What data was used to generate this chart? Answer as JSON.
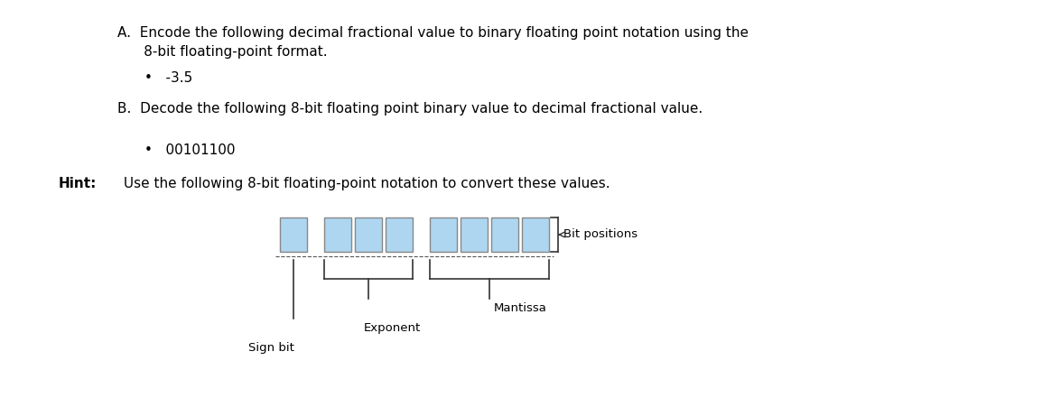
{
  "title_a": "A.  Encode the following decimal fractional value to binary floating point notation using the\n      8-bit floating-point format.",
  "bullet_a": "•   -3.5",
  "title_b": "B.  Decode the following 8-bit floating point binary value to decimal fractional value.",
  "bullet_b": "•   00101100",
  "hint_bold": "Hint:",
  "hint_text": " Use the following 8-bit floating-point notation to convert these values.",
  "bit_color": "#aed6f1",
  "bit_border": "#888888",
  "label_bit_positions": "Bit positions",
  "label_mantissa": "Mantissa",
  "label_exponent": "Exponent",
  "label_sign": "Sign bit",
  "background": "#ffffff",
  "text_color": "#000000",
  "n_bits": 8,
  "sign_bits": 1,
  "exponent_bits": 3,
  "mantissa_bits": 4
}
